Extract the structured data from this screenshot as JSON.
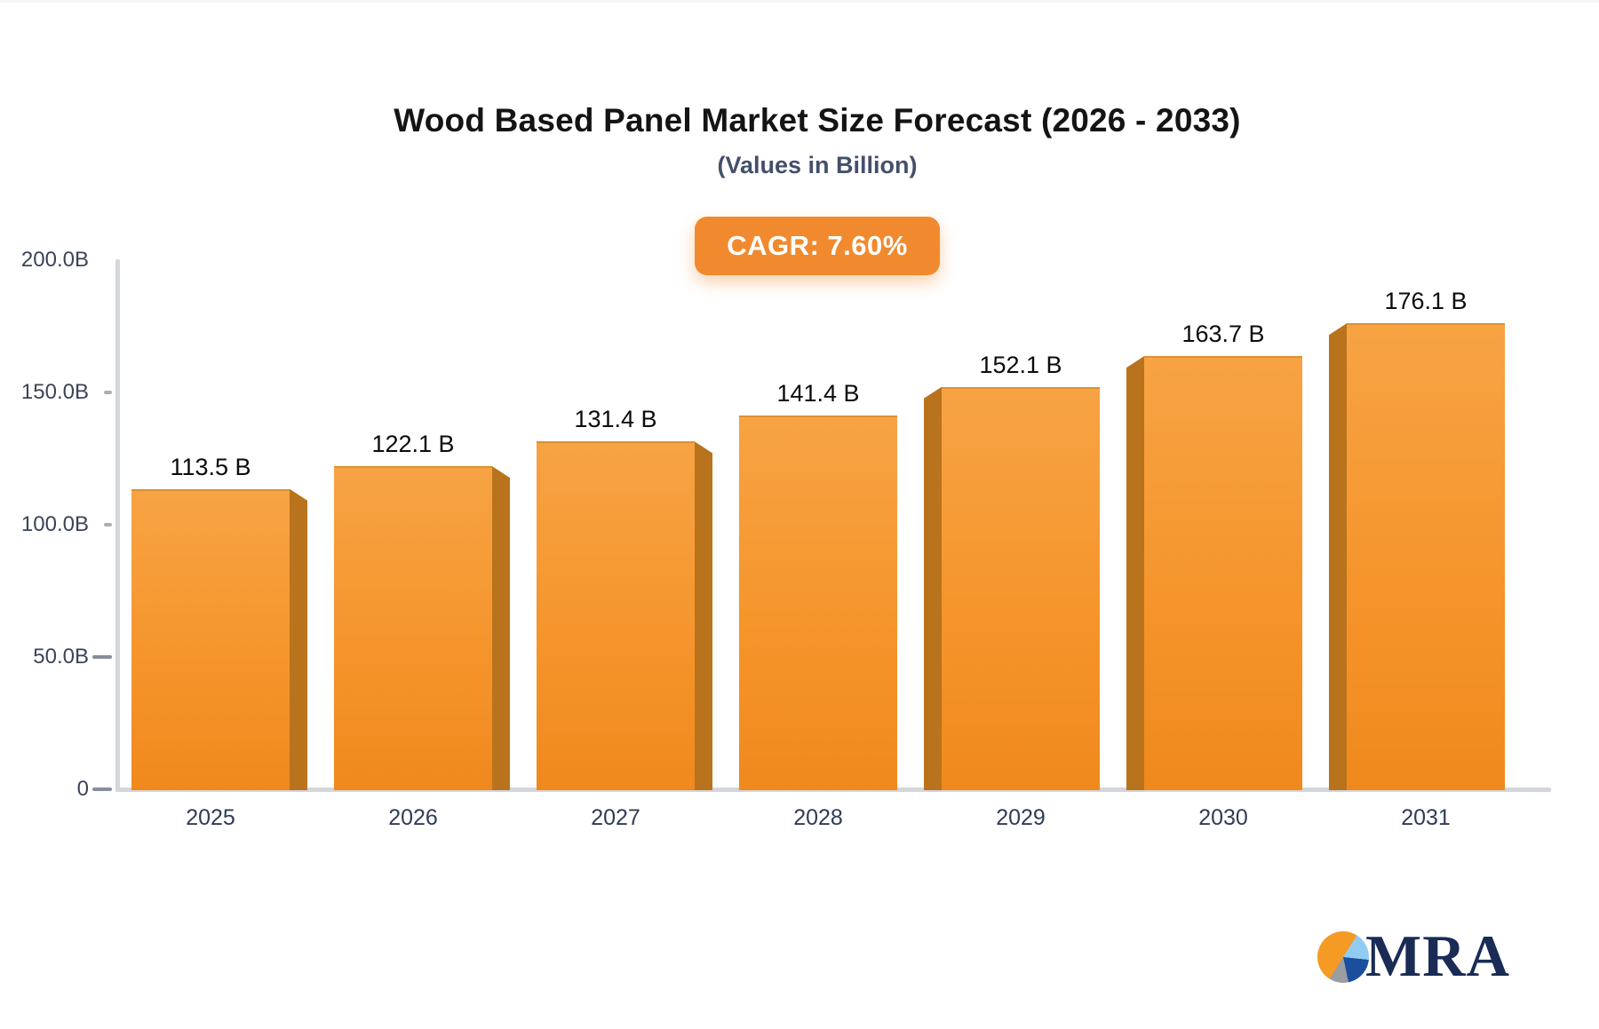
{
  "header": {
    "title": "Wood Based Panel Market Size Forecast (2026 - 2033)",
    "subtitle": "(Values in Billion)"
  },
  "cagr_badge": {
    "label": "CAGR: 7.60%",
    "background_color": "#F18A2E",
    "text_color": "#FFFFFF"
  },
  "chart_data": {
    "type": "bar",
    "title": "Wood Based Panel Market Size Forecast (2026 - 2033)",
    "subtitle": "(Values in Billion)",
    "categories": [
      "2025",
      "2026",
      "2027",
      "2028",
      "2029",
      "2030",
      "2031"
    ],
    "values": [
      113.5,
      122.1,
      131.4,
      141.4,
      152.1,
      163.7,
      176.1
    ],
    "value_labels": [
      "113.5 B",
      "122.1 B",
      "131.4 B",
      "141.4 B",
      "152.1 B",
      "163.7 B",
      "176.1 B"
    ],
    "y_ticks": [
      {
        "label": "200.0B",
        "value": 200
      },
      {
        "label": "150.0B",
        "value": 150
      },
      {
        "label": "100.0B",
        "value": 100
      },
      {
        "label": "50.0B",
        "value": 50
      },
      {
        "label": "0",
        "value": 0
      }
    ],
    "ylim": [
      0,
      200
    ],
    "xlabel": "",
    "ylabel": "",
    "grid": false,
    "legend": "none",
    "bar_color_top": "#F7A344",
    "bar_color_mid": "#F5952C",
    "bar_color_bottom": "#F0891D",
    "bar_side_color": "#B9731D",
    "axis_color": "#D3D6DB"
  },
  "logo": {
    "text": "MRA",
    "icon": "pie-chart-logo-icon",
    "text_color": "#1A2B55",
    "pie_colors": [
      "#F59B23",
      "#92CBF2",
      "#1C4E9E",
      "#9A9DA1"
    ]
  }
}
